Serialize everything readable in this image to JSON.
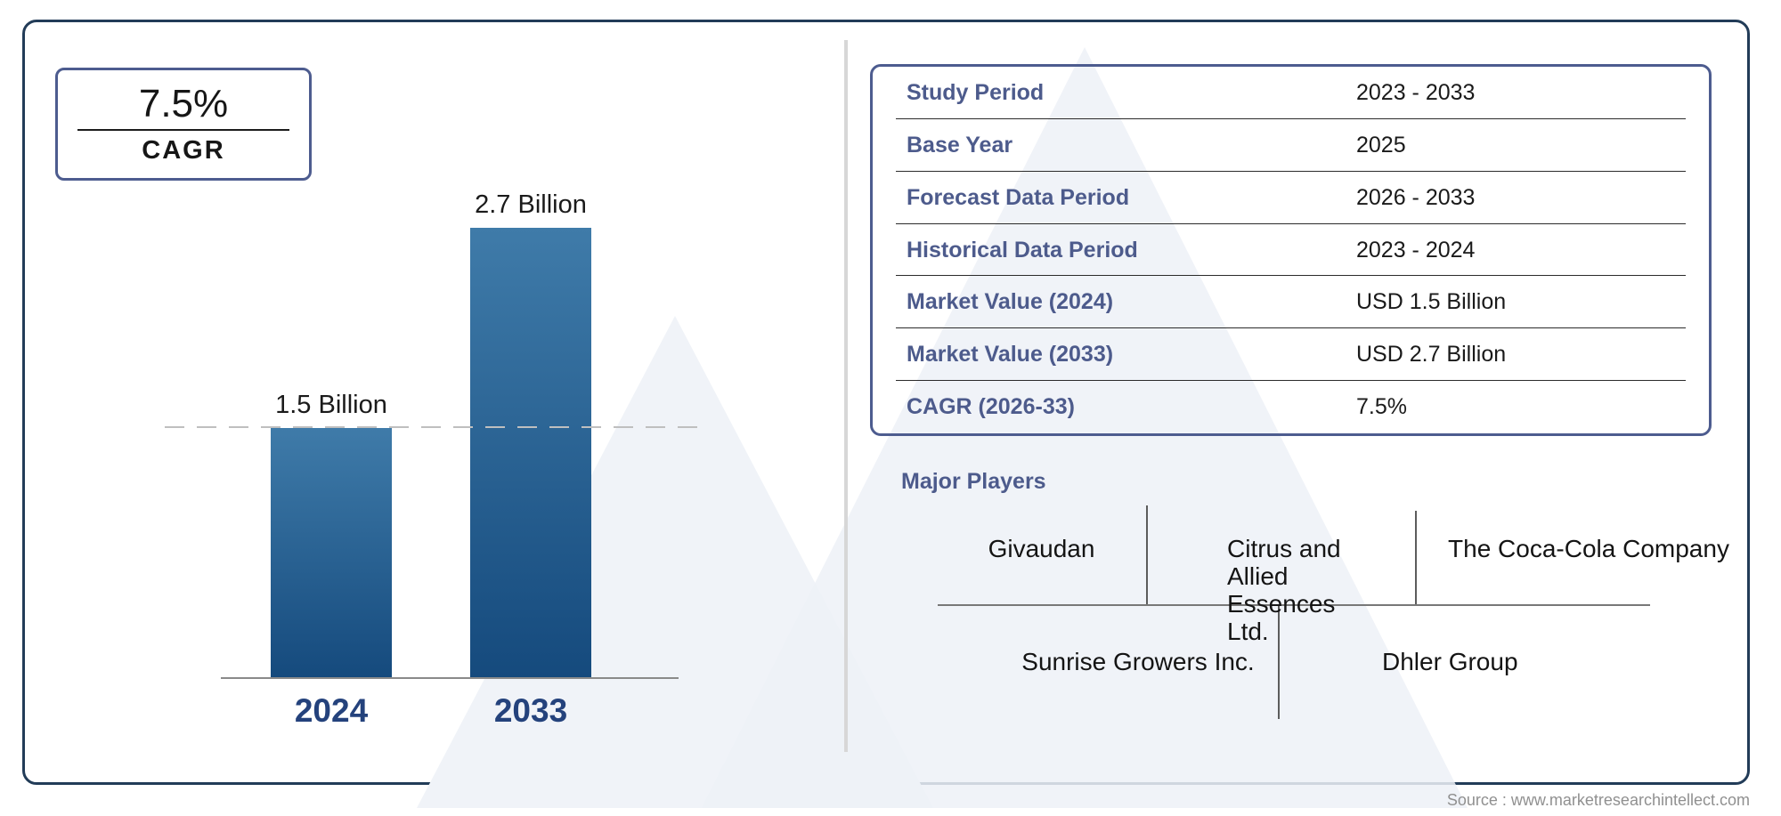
{
  "cagr_badge": {
    "value": "7.5%",
    "label": "CAGR"
  },
  "chart_data": {
    "type": "bar",
    "title": "",
    "categories": [
      "2024",
      "2033"
    ],
    "values": [
      1.5,
      2.7
    ],
    "value_labels": [
      "1.5 Billion",
      "2.7 Billion"
    ],
    "unit": "USD Billion",
    "ylim": [
      0,
      2.7
    ],
    "grid": "off",
    "legend": "none",
    "reference_line": {
      "style": "dashed",
      "value": 1.5
    },
    "bar_color_top": "#3f7ba9",
    "bar_color_bottom": "#154a7d"
  },
  "info_table": {
    "rows": [
      {
        "label": "Study Period",
        "value": "2023 - 2033"
      },
      {
        "label": "Base Year",
        "value": "2025"
      },
      {
        "label": "Forecast Data Period",
        "value": "2026 - 2033"
      },
      {
        "label": "Historical Data Period",
        "value": "2023 - 2024"
      },
      {
        "label": "Market Value (2024)",
        "value": "USD 1.5 Billion"
      },
      {
        "label": "Market Value (2033)",
        "value": "USD 2.7 Billion"
      },
      {
        "label": "CAGR (2026-33)",
        "value": "7.5%"
      }
    ]
  },
  "major_players": {
    "heading": "Major Players",
    "top_row": [
      "Givaudan",
      "Citrus and Allied Essences Ltd.",
      "The Coca-Cola Company"
    ],
    "bottom_row": [
      "Sunrise Growers Inc.",
      "Dhler Group"
    ]
  },
  "source": "Source : www.marketresearchintellect.com",
  "colors": {
    "frame_border": "#223c58",
    "card_border": "#4d5c8f",
    "label_blue": "#4d5b8c",
    "year_label": "#24427c",
    "bar_top": "#3f7ba9",
    "bar_bottom": "#154a7d",
    "watermark": "#eef1f7",
    "source_text": "#909090"
  }
}
